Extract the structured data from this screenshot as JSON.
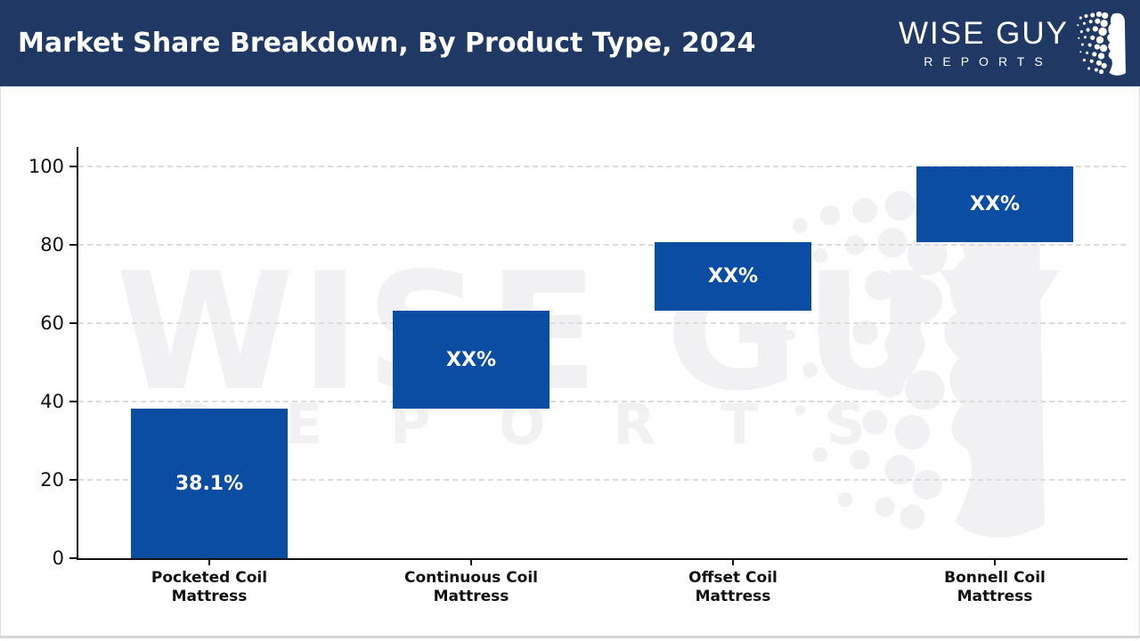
{
  "header": {
    "title": "Market Share Breakdown, By Product Type, 2024",
    "bg_color": "#1F3864",
    "logo": {
      "name": "WISE GUY",
      "sub": "REPORTS"
    }
  },
  "watermark": {
    "name": "WISE GUY",
    "sub": "REPORTS"
  },
  "chart_data": {
    "type": "bar",
    "variant": "floating-segment-waterfall",
    "title": "Market Share Breakdown, By Product Type, 2024",
    "categories": [
      "Pocketed Coil Mattress",
      "Continuous Coil Mattress",
      "Offset Coil Mattress",
      "Bonnell Coil Mattress"
    ],
    "category_lines": [
      [
        "Pocketed Coil",
        "Mattress"
      ],
      [
        "Continuous Coil",
        "Mattress"
      ],
      [
        "Offset Coil",
        "Mattress"
      ],
      [
        "Bonnell Coil",
        "Mattress"
      ]
    ],
    "segments": [
      {
        "category": "Pocketed Coil Mattress",
        "start": 0,
        "end": 38.1,
        "label": "38.1%"
      },
      {
        "category": "Continuous Coil Mattress",
        "start": 38.1,
        "end": 63.1,
        "label": "XX%"
      },
      {
        "category": "Offset Coil Mattress",
        "start": 63.1,
        "end": 80.7,
        "label": "XX%"
      },
      {
        "category": "Bonnell Coil Mattress",
        "start": 80.7,
        "end": 100,
        "label": "XX%"
      }
    ],
    "xlabel": "",
    "ylabel": "",
    "yticks": [
      0,
      20,
      40,
      60,
      80,
      100
    ],
    "ylim": [
      0,
      105
    ],
    "grid": "horizontal-dashed",
    "grid_color": "#DCDCDC",
    "legend": "none",
    "bar_color": "#0B4DA2",
    "bar_label_color": "#FFFFFF",
    "axis_color": "#111111",
    "tick_label_color": "#111111"
  }
}
